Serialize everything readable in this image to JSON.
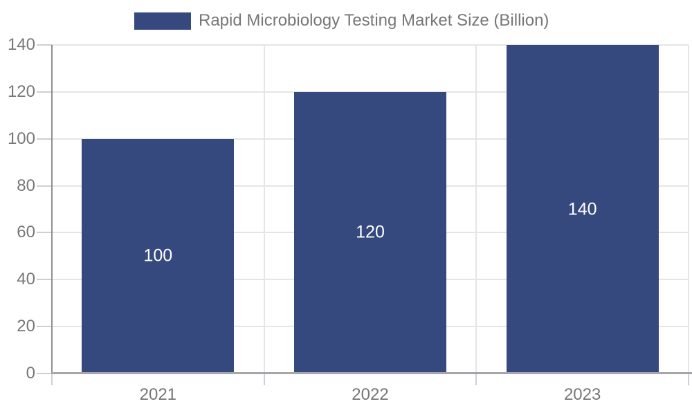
{
  "chart_data": {
    "type": "bar",
    "title": "Rapid Microbiology Testing Market Size (Billion)",
    "categories": [
      "2021",
      "2022",
      "2023"
    ],
    "values": [
      100,
      120,
      140
    ],
    "bar_value_labels": [
      "100",
      "120",
      "140"
    ],
    "xlabel": "",
    "ylabel": "",
    "ylim": [
      0,
      140
    ],
    "yticks": [
      0,
      20,
      40,
      60,
      80,
      100,
      120,
      140
    ],
    "grid": "on",
    "legend_position": "top-center",
    "legend_label": "Rapid Microbiology Testing Market Size (Billion)"
  },
  "style": {
    "background": "#ffffff",
    "bar_color": "#36497e",
    "bar_label_color": "#ffffff",
    "text_color": "#777777",
    "grid_color": "#e5e5e5",
    "tick_color": "#cfcfcf",
    "y_axis_color": "#8f8f8f",
    "x_axis_color": "#a5a5ab"
  }
}
